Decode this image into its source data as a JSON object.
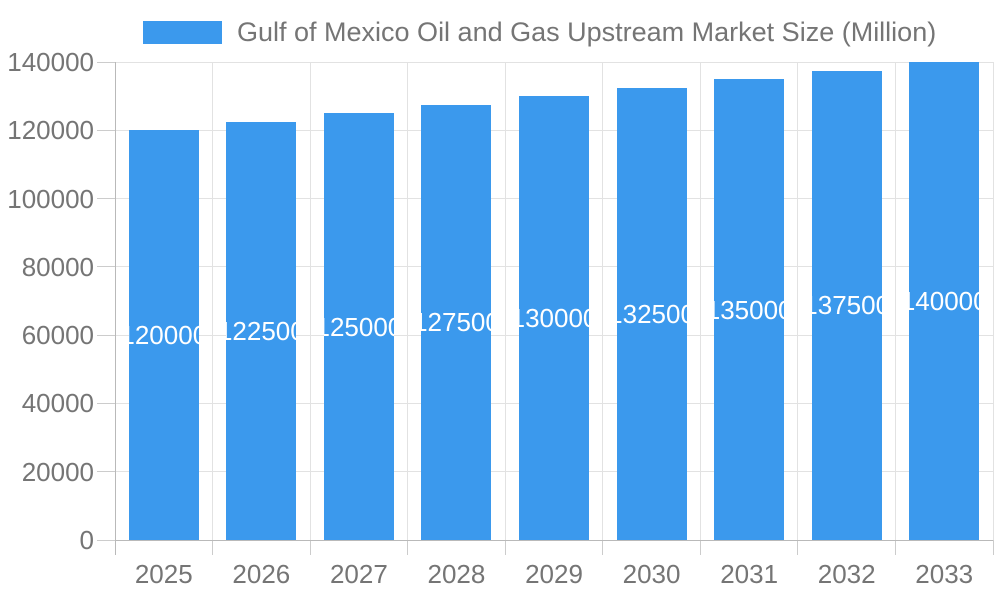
{
  "legend": {
    "label": "Gulf of Mexico Oil and Gas Upstream Market Size (Million)"
  },
  "colors": {
    "bar": "#3b99ed",
    "bar_label": "#ffffff",
    "axis_text": "#757575",
    "grid_line": "#e2e2e2",
    "tick_line": "#cccccc",
    "axis_line": "#b9b9b9",
    "background": "#ffffff"
  },
  "chart_data": {
    "type": "bar",
    "title": "Gulf of Mexico Oil and Gas Upstream Market Size (Million)",
    "series_name": "Gulf of Mexico Oil and Gas Upstream Market Size (Million)",
    "categories": [
      "2025",
      "2026",
      "2027",
      "2028",
      "2029",
      "2030",
      "2031",
      "2032",
      "2033"
    ],
    "values": [
      120000,
      122500,
      125000,
      127500,
      130000,
      132500,
      135000,
      137500,
      140000
    ],
    "xlabel": "",
    "ylabel": "",
    "ylim": [
      0,
      140000
    ],
    "y_ticks": [
      0,
      20000,
      40000,
      60000,
      80000,
      100000,
      120000,
      140000
    ],
    "grid": "on",
    "legend_position": "top-left",
    "value_label_position": "inside-center"
  }
}
